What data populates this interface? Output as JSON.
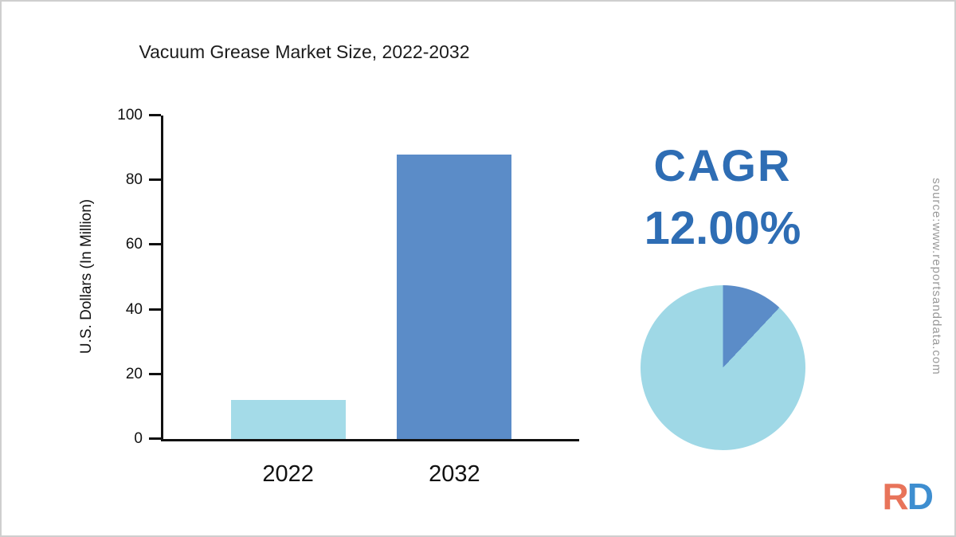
{
  "chart_data": {
    "type": "bar",
    "categories": [
      "2022",
      "2032"
    ],
    "values": [
      12,
      88
    ],
    "title": "Vacuum Grease Market Size, 2022-2032",
    "xlabel": "",
    "ylabel": "U.S. Dollars (In Million)",
    "ylim": [
      0,
      100
    ],
    "yticks": [
      0,
      20,
      40,
      60,
      80,
      100
    ],
    "bar_colors": [
      "#a4dbe8",
      "#5b8cc8"
    ],
    "grid": false,
    "legend": "none"
  },
  "cagr": {
    "label": "CAGR",
    "value": "12.00%"
  },
  "pie": {
    "slice_percent": 12,
    "slice_color": "#5b8cc8",
    "rest_color": "#9fd8e6"
  },
  "source": "source:www.reportsanddata.com",
  "logo": {
    "r": "R",
    "d": "D"
  },
  "colors": {
    "accent_text": "#2e6db4",
    "axis": "#111111",
    "source_gray": "#999999",
    "border": "#cfcfcf"
  }
}
